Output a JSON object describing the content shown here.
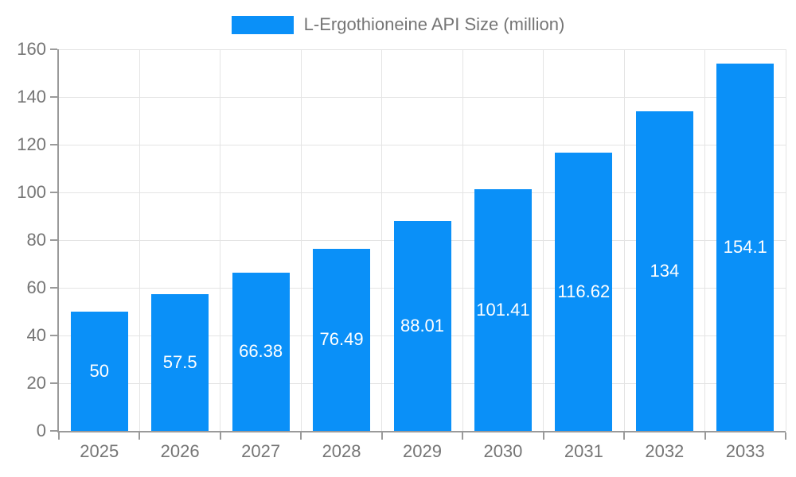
{
  "legend": {
    "label": "L-Ergothioneine API Size (million)"
  },
  "chart_data": {
    "type": "bar",
    "title": "L-Ergothioneine API Size (million)",
    "series_name": "L-Ergothioneine API Size (million)",
    "categories": [
      "2025",
      "2026",
      "2027",
      "2028",
      "2029",
      "2030",
      "2031",
      "2032",
      "2033"
    ],
    "values": [
      50,
      57.5,
      66.38,
      76.49,
      88.01,
      101.41,
      116.62,
      134,
      154.1
    ],
    "value_labels": [
      "50",
      "57.5",
      "66.38",
      "76.49",
      "88.01",
      "101.41",
      "116.62",
      "134",
      "154.1"
    ],
    "xlabel": "",
    "ylabel": "",
    "ylim": [
      0,
      160
    ],
    "yticks": [
      0,
      20,
      40,
      60,
      80,
      100,
      120,
      140,
      160
    ],
    "grid": true,
    "legend_position": "top-center",
    "label_position": "inside-center",
    "colors": {
      "bar": "#0a90f8",
      "axis": "#9a9a9a",
      "grid": "#e4e4e4",
      "tick_label": "#757575",
      "value_label": "#ffffff",
      "legend_text": "#757575",
      "background": "#ffffff"
    }
  }
}
